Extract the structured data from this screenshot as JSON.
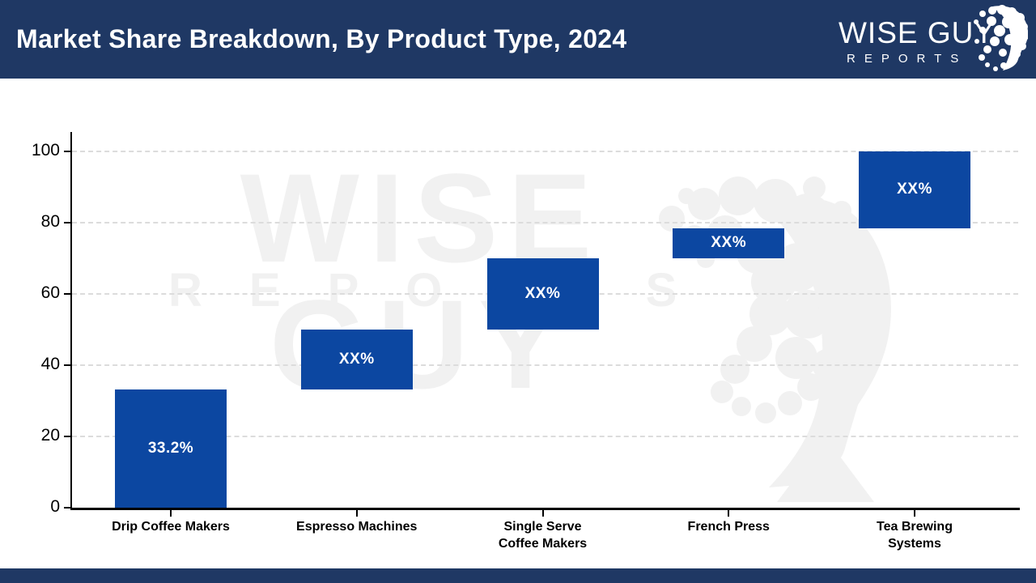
{
  "header": {
    "title": "Market Share Breakdown, By Product Type, 2024",
    "logo": {
      "line1": "WISE GUY",
      "line2": "REPORTS"
    }
  },
  "watermark": {
    "line1": "WISE GUY",
    "line2": "REPORTS"
  },
  "colors": {
    "header_bg": "#1f3864",
    "footer_bg": "#1f3864",
    "bar": "#0c47a1",
    "bar_label_text": "#ffffff",
    "grid": "#dcdcdc",
    "axis": "#000000",
    "tick_text": "#000000",
    "watermark": "#f1f1f1"
  },
  "chart_data": {
    "type": "bar",
    "subtype": "waterfall",
    "title": "Market Share Breakdown, By Product Type, 2024",
    "categories": [
      "Drip Coffee Makers",
      "Espresso Machines",
      "Single Serve\nCoffee Makers",
      "French Press",
      "Tea Brewing\nSystems"
    ],
    "segments": [
      {
        "category": "Drip Coffee Makers",
        "start": 0,
        "end": 33.2,
        "label": "33.2%"
      },
      {
        "category": "Espresso Machines",
        "start": 33.2,
        "end": 50,
        "label": "XX%"
      },
      {
        "category": "Single Serve Coffee Makers",
        "start": 50,
        "end": 70,
        "label": "XX%"
      },
      {
        "category": "French Press",
        "start": 70,
        "end": 78.5,
        "label": "XX%"
      },
      {
        "category": "Tea Brewing Systems",
        "start": 78.5,
        "end": 100,
        "label": "XX%"
      }
    ],
    "yticks": [
      0,
      20,
      40,
      60,
      80,
      100
    ],
    "ylim": [
      0,
      105
    ],
    "xlabel": "",
    "ylabel": "",
    "grid": "horizontal-dashed",
    "legend": "none"
  }
}
